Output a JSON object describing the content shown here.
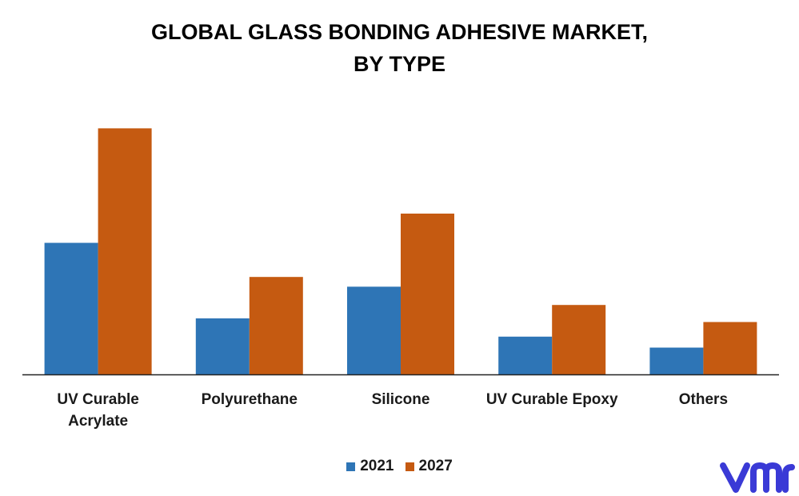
{
  "title_lines": [
    "GLOBAL GLASS BONDING ADHESIVE MARKET,",
    "BY TYPE"
  ],
  "chart_data": {
    "type": "bar",
    "categories": [
      "UV Curable\nAcrylate",
      "Polyurethane",
      "Silicone",
      "UV Curable Epoxy",
      "Others"
    ],
    "series": [
      {
        "name": "2021",
        "color": "#2e75b6",
        "values": [
          5.4,
          2.3,
          3.6,
          1.55,
          1.1
        ]
      },
      {
        "name": "2027",
        "color": "#c55a11",
        "values": [
          10.1,
          4.0,
          6.6,
          2.85,
          2.15
        ]
      }
    ],
    "ylim": [
      0,
      11
    ],
    "grid": false,
    "legend": "bottom-center",
    "xlabel": "",
    "ylabel": ""
  },
  "logo": {
    "text": "vmr",
    "color": "#3a3ad6"
  }
}
